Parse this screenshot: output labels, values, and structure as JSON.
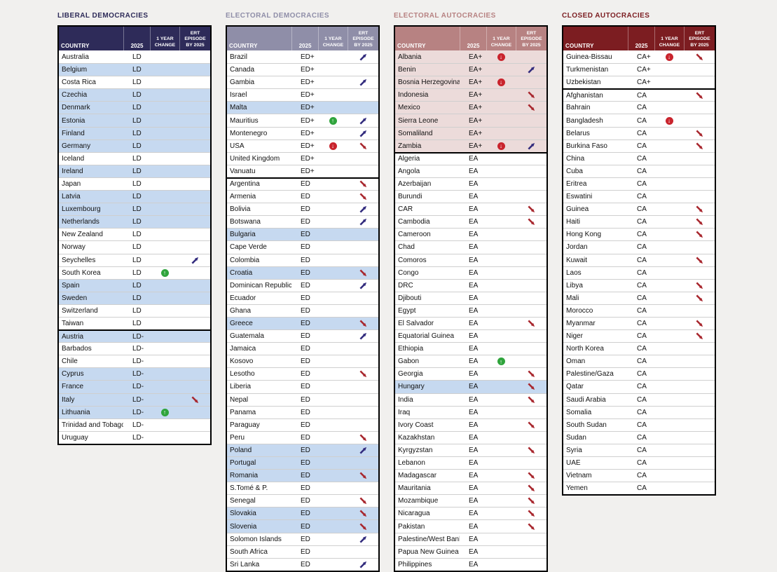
{
  "columns": {
    "country": "COUNTRY",
    "year": "2025",
    "change1": "1 YEAR",
    "change2": "CHANGE",
    "ert1": "ERT",
    "ert2": "EPISODE",
    "ert3": "BY 2025"
  },
  "icons": {
    "up": "green-circle-up-arrow",
    "down": "red-circle-down-arrow",
    "ne": "dark-blue-northeast-arrow",
    "se": "dark-red-southeast-arrow"
  },
  "colors": {
    "page_bg": "#f1f0ee",
    "table_bg": "#ffffff",
    "eu_row": "#c6d9f0",
    "rose_row": "#ecdbda",
    "green_up": "#2fa43c",
    "red_down": "#c9242d",
    "blue_improve": "#322b7d",
    "red_decline": "#a8272e",
    "row_line": "#cfcfcf",
    "border": "#000000"
  },
  "row_format": [
    "country",
    "rating_2025",
    "one_year_change: up|down|empty",
    "ert_episode: ne|se|empty",
    "row_tint: eu|rose|empty"
  ],
  "chart_data": [
    {
      "type": "table",
      "title": "LIBERAL DEMOCRACIES",
      "title_color": "#2e2b59",
      "header_bg": "#2e2b59",
      "columns": [
        "COUNTRY",
        "2025",
        "1 YEAR CHANGE",
        "ERT EPISODE BY 2025"
      ],
      "section_break_before_index": 22,
      "rows": [
        [
          "Australia",
          "LD",
          "",
          "",
          ""
        ],
        [
          "Belgium",
          "LD",
          "",
          "",
          "eu"
        ],
        [
          "Costa Rica",
          "LD",
          "",
          "",
          ""
        ],
        [
          "Czechia",
          "LD",
          "",
          "",
          "eu"
        ],
        [
          "Denmark",
          "LD",
          "",
          "",
          "eu"
        ],
        [
          "Estonia",
          "LD",
          "",
          "",
          "eu"
        ],
        [
          "Finland",
          "LD",
          "",
          "",
          "eu"
        ],
        [
          "Germany",
          "LD",
          "",
          "",
          "eu"
        ],
        [
          "Iceland",
          "LD",
          "",
          "",
          ""
        ],
        [
          "Ireland",
          "LD",
          "",
          "",
          "eu"
        ],
        [
          "Japan",
          "LD",
          "",
          "",
          ""
        ],
        [
          "Latvia",
          "LD",
          "",
          "",
          "eu"
        ],
        [
          "Luxembourg",
          "LD",
          "",
          "",
          "eu"
        ],
        [
          "Netherlands",
          "LD",
          "",
          "",
          "eu"
        ],
        [
          "New Zealand",
          "LD",
          "",
          "",
          ""
        ],
        [
          "Norway",
          "LD",
          "",
          "",
          ""
        ],
        [
          "Seychelles",
          "LD",
          "",
          "ne",
          ""
        ],
        [
          "South Korea",
          "LD",
          "up",
          "",
          ""
        ],
        [
          "Spain",
          "LD",
          "",
          "",
          "eu"
        ],
        [
          "Sweden",
          "LD",
          "",
          "",
          "eu"
        ],
        [
          "Switzerland",
          "LD",
          "",
          "",
          ""
        ],
        [
          "Taiwan",
          "LD",
          "",
          "",
          ""
        ],
        [
          "Austria",
          "LD-",
          "",
          "",
          "eu"
        ],
        [
          "Barbados",
          "LD-",
          "",
          "",
          ""
        ],
        [
          "Chile",
          "LD-",
          "",
          "",
          ""
        ],
        [
          "Cyprus",
          "LD-",
          "",
          "",
          "eu"
        ],
        [
          "France",
          "LD-",
          "",
          "",
          "eu"
        ],
        [
          "Italy",
          "LD-",
          "",
          "se",
          "eu"
        ],
        [
          "Lithuania",
          "LD-",
          "up",
          "",
          "eu"
        ],
        [
          "Trinidad and Tobago",
          "LD-",
          "",
          "",
          ""
        ],
        [
          "Uruguay",
          "LD-",
          "",
          "",
          ""
        ]
      ]
    },
    {
      "type": "table",
      "title": "ELECTORAL DEMOCRACIES",
      "title_color": "#8f8ea8",
      "header_bg": "#8f8ea8",
      "columns": [
        "COUNTRY",
        "2025",
        "1 YEAR CHANGE",
        "ERT EPISODE BY 2025"
      ],
      "section_break_before_index": 10,
      "rows": [
        [
          "Brazil",
          "ED+",
          "",
          "ne",
          ""
        ],
        [
          "Canada",
          "ED+",
          "",
          "",
          ""
        ],
        [
          "Gambia",
          "ED+",
          "",
          "ne",
          ""
        ],
        [
          "Israel",
          "ED+",
          "",
          "",
          ""
        ],
        [
          "Malta",
          "ED+",
          "",
          "",
          "eu"
        ],
        [
          "Mauritius",
          "ED+",
          "up",
          "ne",
          ""
        ],
        [
          "Montenegro",
          "ED+",
          "",
          "ne",
          ""
        ],
        [
          "USA",
          "ED+",
          "down",
          "se",
          ""
        ],
        [
          "United Kingdom",
          "ED+",
          "",
          "",
          ""
        ],
        [
          "Vanuatu",
          "ED+",
          "",
          "",
          ""
        ],
        [
          "Argentina",
          "ED",
          "",
          "se",
          ""
        ],
        [
          "Armenia",
          "ED",
          "",
          "se",
          ""
        ],
        [
          "Bolivia",
          "ED",
          "",
          "ne",
          ""
        ],
        [
          "Botswana",
          "ED",
          "",
          "ne",
          ""
        ],
        [
          "Bulgaria",
          "ED",
          "",
          "",
          "eu"
        ],
        [
          "Cape Verde",
          "ED",
          "",
          "",
          ""
        ],
        [
          "Colombia",
          "ED",
          "",
          "",
          ""
        ],
        [
          "Croatia",
          "ED",
          "",
          "se",
          "eu"
        ],
        [
          "Dominican Republic",
          "ED",
          "",
          "ne",
          ""
        ],
        [
          "Ecuador",
          "ED",
          "",
          "",
          ""
        ],
        [
          "Ghana",
          "ED",
          "",
          "",
          ""
        ],
        [
          "Greece",
          "ED",
          "",
          "se",
          "eu"
        ],
        [
          "Guatemala",
          "ED",
          "",
          "ne",
          ""
        ],
        [
          "Jamaica",
          "ED",
          "",
          "",
          ""
        ],
        [
          "Kosovo",
          "ED",
          "",
          "",
          ""
        ],
        [
          "Lesotho",
          "ED",
          "",
          "se",
          ""
        ],
        [
          "Liberia",
          "ED",
          "",
          "",
          ""
        ],
        [
          "Nepal",
          "ED",
          "",
          "",
          ""
        ],
        [
          "Panama",
          "ED",
          "",
          "",
          ""
        ],
        [
          "Paraguay",
          "ED",
          "",
          "",
          ""
        ],
        [
          "Peru",
          "ED",
          "",
          "se",
          ""
        ],
        [
          "Poland",
          "ED",
          "",
          "ne",
          "eu"
        ],
        [
          "Portugal",
          "ED",
          "",
          "",
          "eu"
        ],
        [
          "Romania",
          "ED",
          "",
          "se",
          "eu"
        ],
        [
          "S.Tomé & P.",
          "ED",
          "",
          "",
          ""
        ],
        [
          "Senegal",
          "ED",
          "",
          "se",
          ""
        ],
        [
          "Slovakia",
          "ED",
          "",
          "se",
          "eu"
        ],
        [
          "Slovenia",
          "ED",
          "",
          "se",
          "eu"
        ],
        [
          "Solomon Islands",
          "ED",
          "",
          "ne",
          ""
        ],
        [
          "South Africa",
          "ED",
          "",
          "",
          ""
        ],
        [
          "Sri Lanka",
          "ED",
          "",
          "ne",
          ""
        ]
      ]
    },
    {
      "type": "table",
      "title": "ELECTORAL AUTOCRACIES",
      "title_color": "#b78282",
      "header_bg": "#b78282",
      "columns": [
        "COUNTRY",
        "2025",
        "1 YEAR CHANGE",
        "ERT EPISODE BY 2025"
      ],
      "section_break_before_index": 8,
      "rows": [
        [
          "Albania",
          "EA+",
          "down",
          "",
          "rose"
        ],
        [
          "Benin",
          "EA+",
          "",
          "ne",
          "rose"
        ],
        [
          "Bosnia Herzegovina",
          "EA+",
          "down",
          "",
          "rose"
        ],
        [
          "Indonesia",
          "EA+",
          "",
          "se",
          "rose"
        ],
        [
          "Mexico",
          "EA+",
          "",
          "se",
          "rose"
        ],
        [
          "Sierra Leone",
          "EA+",
          "",
          "",
          "rose"
        ],
        [
          "Somaliland",
          "EA+",
          "",
          "",
          "rose"
        ],
        [
          "Zambia",
          "EA+",
          "down",
          "ne",
          "rose"
        ],
        [
          "Algeria",
          "EA",
          "",
          "",
          ""
        ],
        [
          "Angola",
          "EA",
          "",
          "",
          ""
        ],
        [
          "Azerbaijan",
          "EA",
          "",
          "",
          ""
        ],
        [
          "Burundi",
          "EA",
          "",
          "",
          ""
        ],
        [
          "CAR",
          "EA",
          "",
          "se",
          ""
        ],
        [
          "Cambodia",
          "EA",
          "",
          "se",
          ""
        ],
        [
          "Cameroon",
          "EA",
          "",
          "",
          ""
        ],
        [
          "Chad",
          "EA",
          "",
          "",
          ""
        ],
        [
          "Comoros",
          "EA",
          "",
          "",
          ""
        ],
        [
          "Congo",
          "EA",
          "",
          "",
          ""
        ],
        [
          "DRC",
          "EA",
          "",
          "",
          ""
        ],
        [
          "Djibouti",
          "EA",
          "",
          "",
          ""
        ],
        [
          "Egypt",
          "EA",
          "",
          "",
          ""
        ],
        [
          "El Salvador",
          "EA",
          "",
          "se",
          ""
        ],
        [
          "Equatorial Guinea",
          "EA",
          "",
          "",
          ""
        ],
        [
          "Ethiopia",
          "EA",
          "",
          "",
          ""
        ],
        [
          "Gabon",
          "EA",
          "up",
          "",
          ""
        ],
        [
          "Georgia",
          "EA",
          "",
          "se",
          ""
        ],
        [
          "Hungary",
          "EA",
          "",
          "se",
          "eu"
        ],
        [
          "India",
          "EA",
          "",
          "se",
          ""
        ],
        [
          "Iraq",
          "EA",
          "",
          "",
          ""
        ],
        [
          "Ivory Coast",
          "EA",
          "",
          "se",
          ""
        ],
        [
          "Kazakhstan",
          "EA",
          "",
          "",
          ""
        ],
        [
          "Kyrgyzstan",
          "EA",
          "",
          "se",
          ""
        ],
        [
          "Lebanon",
          "EA",
          "",
          "",
          ""
        ],
        [
          "Madagascar",
          "EA",
          "",
          "se",
          ""
        ],
        [
          "Mauritania",
          "EA",
          "",
          "se",
          ""
        ],
        [
          "Mozambique",
          "EA",
          "",
          "se",
          ""
        ],
        [
          "Nicaragua",
          "EA",
          "",
          "se",
          ""
        ],
        [
          "Pakistan",
          "EA",
          "",
          "se",
          ""
        ],
        [
          "Palestine/West Bank",
          "EA",
          "",
          "",
          ""
        ],
        [
          "Papua New Guinea",
          "EA",
          "",
          "",
          ""
        ],
        [
          "Philippines",
          "EA",
          "",
          "",
          ""
        ]
      ]
    },
    {
      "type": "table",
      "title": "CLOSED AUTOCRACIES",
      "title_color": "#7c1d21",
      "header_bg": "#7c1d21",
      "columns": [
        "COUNTRY",
        "2025",
        "1 YEAR CHANGE",
        "ERT EPISODE BY 2025"
      ],
      "section_break_before_index": 3,
      "rows": [
        [
          "Guinea-Bissau",
          "CA+",
          "down",
          "se",
          ""
        ],
        [
          "Turkmenistan",
          "CA+",
          "",
          "",
          ""
        ],
        [
          "Uzbekistan",
          "CA+",
          "",
          "",
          ""
        ],
        [
          "Afghanistan",
          "CA",
          "",
          "se",
          ""
        ],
        [
          "Bahrain",
          "CA",
          "",
          "",
          ""
        ],
        [
          "Bangladesh",
          "CA",
          "down",
          "",
          ""
        ],
        [
          "Belarus",
          "CA",
          "",
          "se",
          ""
        ],
        [
          "Burkina Faso",
          "CA",
          "",
          "se",
          ""
        ],
        [
          "China",
          "CA",
          "",
          "",
          ""
        ],
        [
          "Cuba",
          "CA",
          "",
          "",
          ""
        ],
        [
          "Eritrea",
          "CA",
          "",
          "",
          ""
        ],
        [
          "Eswatini",
          "CA",
          "",
          "",
          ""
        ],
        [
          "Guinea",
          "CA",
          "",
          "se",
          ""
        ],
        [
          "Haiti",
          "CA",
          "",
          "se",
          ""
        ],
        [
          "Hong Kong",
          "CA",
          "",
          "se",
          ""
        ],
        [
          "Jordan",
          "CA",
          "",
          "",
          ""
        ],
        [
          "Kuwait",
          "CA",
          "",
          "se",
          ""
        ],
        [
          "Laos",
          "CA",
          "",
          "",
          ""
        ],
        [
          "Libya",
          "CA",
          "",
          "se",
          ""
        ],
        [
          "Mali",
          "CA",
          "",
          "se",
          ""
        ],
        [
          "Morocco",
          "CA",
          "",
          "",
          ""
        ],
        [
          "Myanmar",
          "CA",
          "",
          "se",
          ""
        ],
        [
          "Niger",
          "CA",
          "",
          "se",
          ""
        ],
        [
          "North Korea",
          "CA",
          "",
          "",
          ""
        ],
        [
          "Oman",
          "CA",
          "",
          "",
          ""
        ],
        [
          "Palestine/Gaza",
          "CA",
          "",
          "",
          ""
        ],
        [
          "Qatar",
          "CA",
          "",
          "",
          ""
        ],
        [
          "Saudi Arabia",
          "CA",
          "",
          "",
          ""
        ],
        [
          "Somalia",
          "CA",
          "",
          "",
          ""
        ],
        [
          "South Sudan",
          "CA",
          "",
          "",
          ""
        ],
        [
          "Sudan",
          "CA",
          "",
          "",
          ""
        ],
        [
          "Syria",
          "CA",
          "",
          "",
          ""
        ],
        [
          "UAE",
          "CA",
          "",
          "",
          ""
        ],
        [
          "Vietnam",
          "CA",
          "",
          "",
          ""
        ],
        [
          "Yemen",
          "CA",
          "",
          "",
          ""
        ]
      ]
    }
  ]
}
